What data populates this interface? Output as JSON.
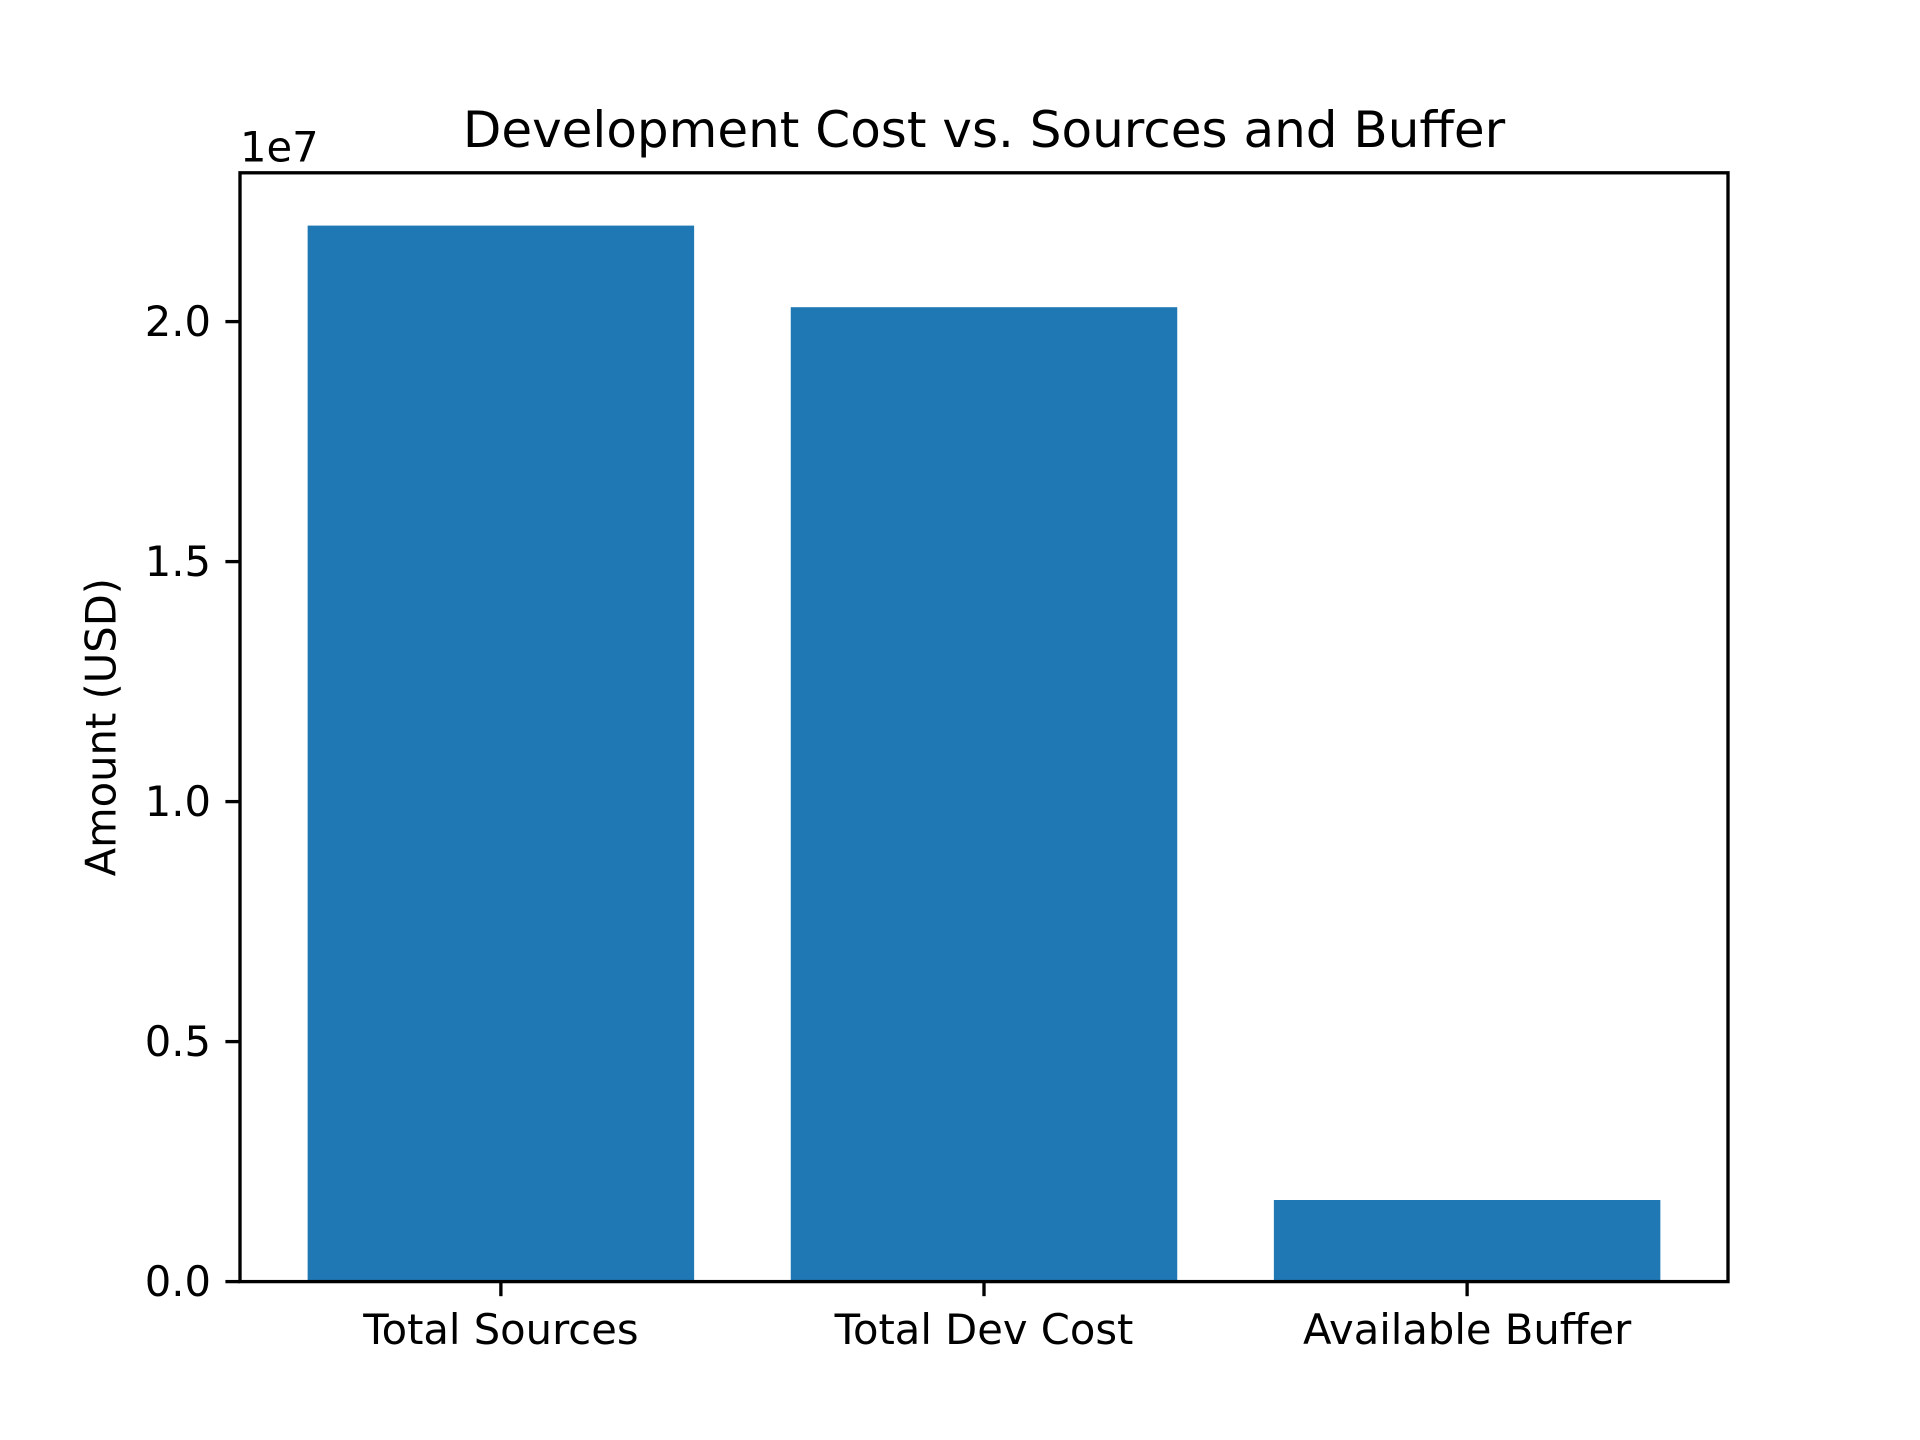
{
  "chart_data": {
    "type": "bar",
    "title": "Development Cost vs. Sources and Buffer",
    "xlabel": "",
    "ylabel": "Amount (USD)",
    "categories": [
      "Total Sources",
      "Total Dev Cost",
      "Available Buffer"
    ],
    "values": [
      22000000,
      20300000,
      1700000
    ],
    "bar_color": "#1f77b4",
    "bar_width": 0.8,
    "xlim": [
      -0.54,
      2.54
    ],
    "ylim": [
      0,
      23100000
    ],
    "yticks": [
      0,
      5000000,
      10000000,
      15000000,
      20000000
    ],
    "ytick_labels": [
      "0.0",
      "0.5",
      "1.0",
      "1.5",
      "2.0"
    ],
    "y_offset_text": "1e7",
    "grid": false,
    "legend_position": "none",
    "background_color": "#ffffff",
    "axes_color": "#000000"
  }
}
